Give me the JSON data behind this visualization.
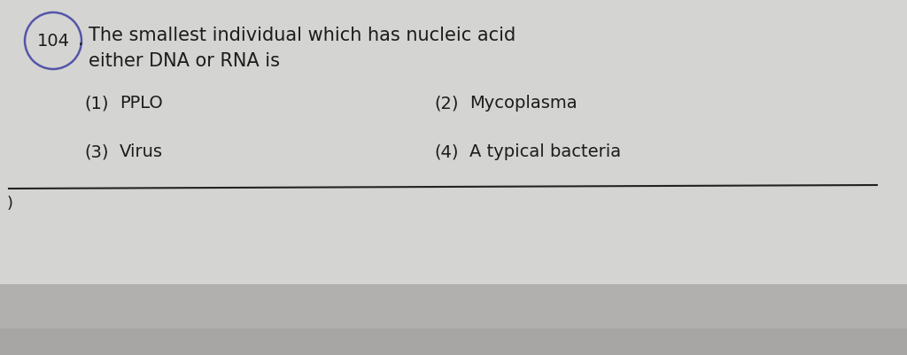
{
  "question_number": "104",
  "dot_after_number": ".",
  "question_text_line1": "The smallest individual which has nucleic acid",
  "question_text_line2": "either DNA or RNA is",
  "options": [
    {
      "num": "(1)",
      "text": "PPLO"
    },
    {
      "num": "(2)",
      "text": "Mycoplasma"
    },
    {
      "num": "(3)",
      "text": "Virus"
    },
    {
      "num": "(4)",
      "text": "A typical bacteria"
    }
  ],
  "bg_color_main": "#d8d8d8",
  "bg_color_bottom": "#b8b6b4",
  "text_color": "#1c1c1c",
  "line_color": "#222222",
  "circle_color": "#5555aa",
  "font_size_question": 15,
  "font_size_options": 14,
  "font_size_number": 14
}
